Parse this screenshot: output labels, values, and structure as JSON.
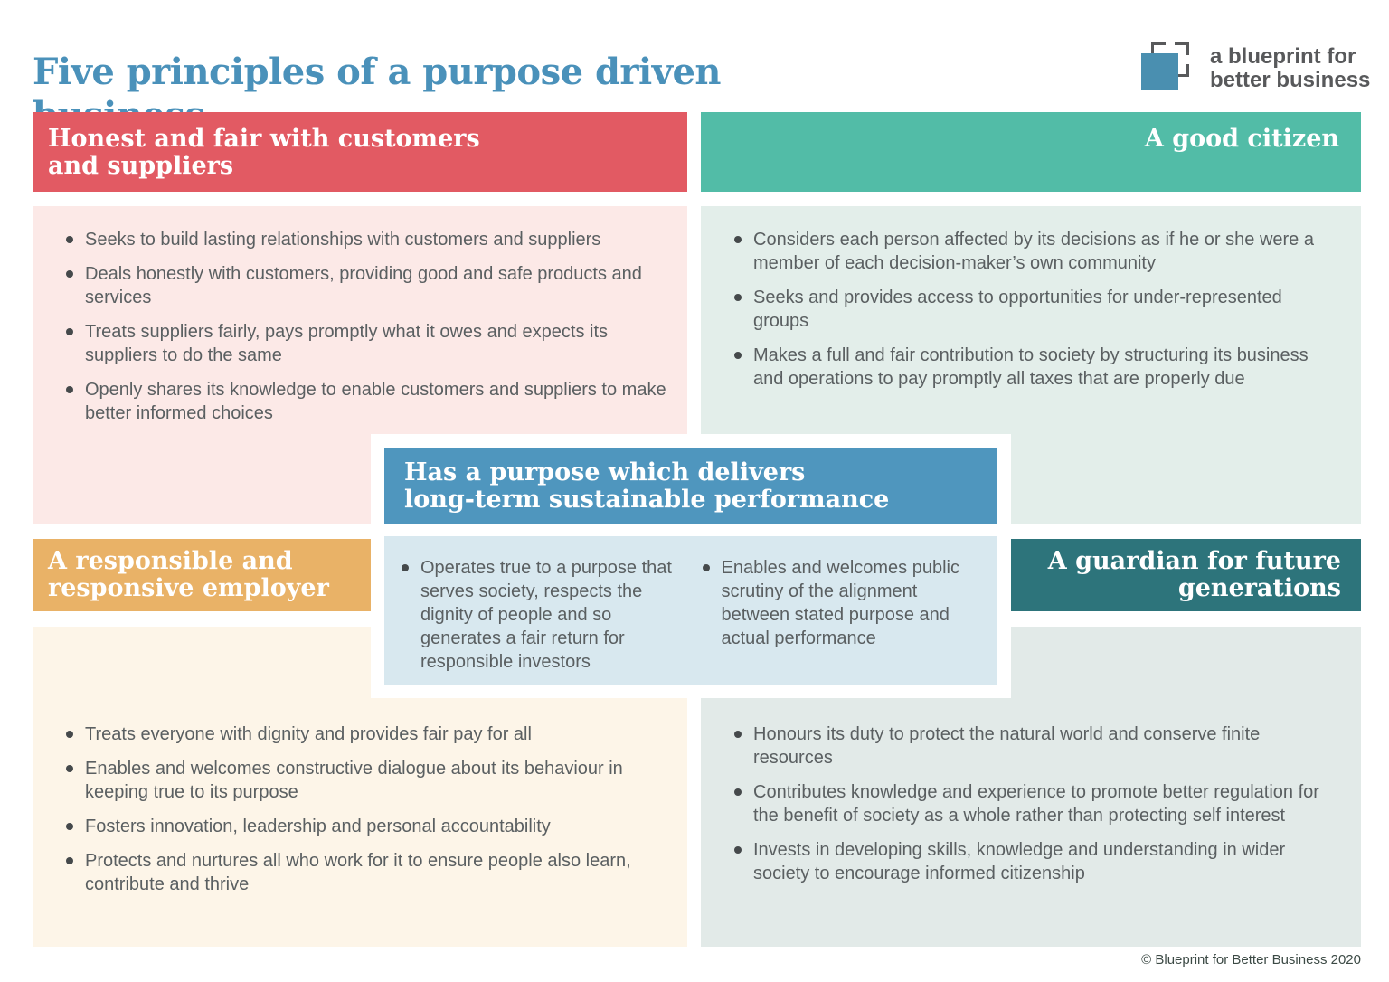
{
  "page": {
    "title": "Five principles of a purpose driven business",
    "footer": "© Blueprint for Better Business 2020"
  },
  "logo": {
    "line1": "a blueprint for",
    "line2": "better business"
  },
  "colors": {
    "title_blue": "#4a91ba",
    "logo_blue": "#4a8fb0",
    "red_header": "#e25a63",
    "pink_body": "#fce9e7",
    "teal_header": "#52bca7",
    "light_teal_body": "#e3eeea",
    "blue_header": "#4f96be",
    "light_blue_body": "#d8e8ef",
    "orange_header": "#e9b267",
    "cream_body": "#fdf5e8",
    "dark_teal_header": "#2d747b",
    "gray_teal_body": "#e2eae8",
    "body_text": "#5a5f61"
  },
  "sections": {
    "customers_suppliers": {
      "title_lines": [
        "Honest and fair with customers",
        "and suppliers"
      ],
      "bullets": [
        "Seeks to build lasting relationships with customers and suppliers",
        "Deals honestly with customers, providing good and safe products and services",
        "Treats suppliers fairly, pays promptly what it owes and expects its suppliers to do the same",
        "Openly shares its knowledge to enable customers and suppliers to make better informed choices"
      ]
    },
    "good_citizen": {
      "title_lines": [
        "A good citizen"
      ],
      "bullets": [
        "Considers each person affected by its decisions as if he or she were a member of each decision-maker’s own community",
        "Seeks and provides access to opportunities for under-represented groups",
        "Makes a full and fair contribution to society by structuring its business and operations to pay promptly all taxes that are properly due"
      ]
    },
    "purpose": {
      "title_lines": [
        "Has a purpose which delivers",
        "long-term sustainable performance"
      ],
      "bullets_left": [
        "Operates true to a purpose that serves society, respects the dignity of people and so generates a fair return for responsible investors"
      ],
      "bullets_right": [
        "Enables and welcomes public scrutiny of the alignment between stated purpose and actual performance"
      ]
    },
    "employer": {
      "title_lines": [
        "A responsible and",
        "responsive employer"
      ],
      "bullets": [
        "Treats everyone with dignity and provides fair pay for all",
        "Enables and welcomes constructive dialogue about its behaviour in keeping true to its purpose",
        "Fosters innovation, leadership and personal accountability",
        "Protects and nurtures all who work for it to ensure people also learn, contribute and thrive"
      ]
    },
    "guardian": {
      "title_lines": [
        "A guardian for future",
        "generations"
      ],
      "bullets": [
        "Honours its duty to protect the natural world and conserve finite resources",
        "Contributes knowledge and experience to promote better regulation for the benefit of society as a whole rather than protecting self interest",
        "Invests in developing skills, knowledge and understanding in wider society to encourage informed citizenship"
      ]
    }
  }
}
